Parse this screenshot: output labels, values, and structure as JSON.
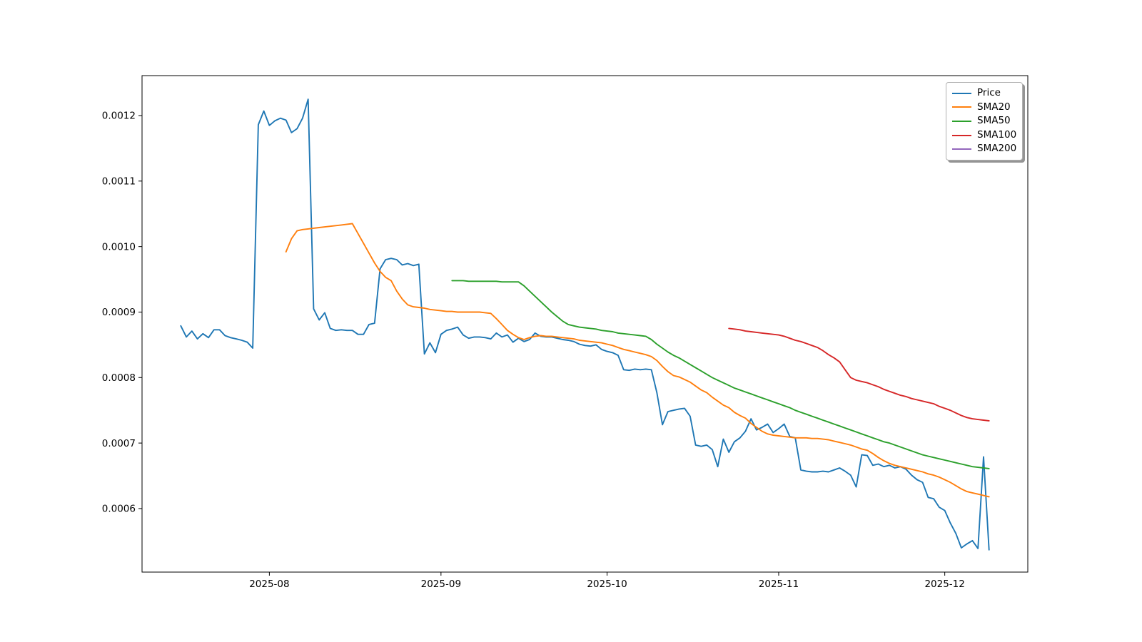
{
  "chart_data": {
    "type": "line",
    "title": "",
    "xlabel": "",
    "ylabel": "",
    "grid": false,
    "xlim": [
      "2025-07-09",
      "2025-12-16"
    ],
    "ylim": [
      0.000503,
      0.001261
    ],
    "x_ticks": [
      {
        "date": "2025-08-01",
        "label": "2025-08"
      },
      {
        "date": "2025-09-01",
        "label": "2025-09"
      },
      {
        "date": "2025-10-01",
        "label": "2025-10"
      },
      {
        "date": "2025-11-01",
        "label": "2025-11"
      },
      {
        "date": "2025-12-01",
        "label": "2025-12"
      }
    ],
    "y_ticks": [
      {
        "value": 0.0006,
        "label": "0.0006"
      },
      {
        "value": 0.0007,
        "label": "0.0007"
      },
      {
        "value": 0.0008,
        "label": "0.0008"
      },
      {
        "value": 0.0009,
        "label": "0.0009"
      },
      {
        "value": 0.001,
        "label": "0.0010"
      },
      {
        "value": 0.0011,
        "label": "0.0011"
      },
      {
        "value": 0.0012,
        "label": "0.0012"
      }
    ],
    "legend": {
      "location": "upper right",
      "entries": [
        {
          "label": "Price",
          "color": "#1f77b4"
        },
        {
          "label": "SMA20",
          "color": "#ff7f0e"
        },
        {
          "label": "SMA50",
          "color": "#2ca02c"
        },
        {
          "label": "SMA100",
          "color": "#d62728"
        },
        {
          "label": "SMA200",
          "color": "#9467bd"
        }
      ]
    },
    "series": [
      {
        "name": "Price",
        "color": "#1f77b4",
        "start_date": "2025-07-16",
        "values": [
          0.000879,
          0.000862,
          0.000871,
          0.000859,
          0.000867,
          0.000861,
          0.000873,
          0.000873,
          0.000864,
          0.000861,
          0.000859,
          0.000857,
          0.000854,
          0.000845,
          0.001186,
          0.001207,
          0.001185,
          0.001192,
          0.001196,
          0.001193,
          0.001174,
          0.00118,
          0.001196,
          0.001225,
          0.000905,
          0.000888,
          0.000899,
          0.000875,
          0.000872,
          0.000873,
          0.000872,
          0.000872,
          0.000866,
          0.000866,
          0.000881,
          0.000883,
          0.000966,
          0.00098,
          0.000982,
          0.00098,
          0.000972,
          0.000974,
          0.000971,
          0.000973,
          0.000836,
          0.000853,
          0.000838,
          0.000866,
          0.000872,
          0.000874,
          0.000877,
          0.000865,
          0.00086,
          0.000862,
          0.000862,
          0.000861,
          0.000859,
          0.000868,
          0.000862,
          0.000865,
          0.000854,
          0.00086,
          0.000855,
          0.000858,
          0.000868,
          0.000863,
          0.000862,
          0.000862,
          0.00086,
          0.000858,
          0.000857,
          0.000855,
          0.000851,
          0.000849,
          0.000848,
          0.00085,
          0.000843,
          0.00084,
          0.000838,
          0.000834,
          0.000812,
          0.000811,
          0.000813,
          0.000812,
          0.000813,
          0.000812,
          0.000777,
          0.000728,
          0.000748,
          0.00075,
          0.000752,
          0.000753,
          0.000741,
          0.000697,
          0.000695,
          0.000697,
          0.00069,
          0.000664,
          0.000706,
          0.000686,
          0.000702,
          0.000708,
          0.000718,
          0.000737,
          0.00072,
          0.000724,
          0.000729,
          0.000716,
          0.000722,
          0.000729,
          0.00071,
          0.000708,
          0.000659,
          0.000657,
          0.000656,
          0.000656,
          0.000657,
          0.000656,
          0.000659,
          0.000662,
          0.000657,
          0.000651,
          0.000633,
          0.000682,
          0.000681,
          0.000666,
          0.000668,
          0.000664,
          0.000666,
          0.000662,
          0.000664,
          0.00066,
          0.000651,
          0.000644,
          0.00064,
          0.000617,
          0.000615,
          0.000602,
          0.000597,
          0.000578,
          0.000562,
          0.00054,
          0.000546,
          0.000551,
          0.000539,
          0.000679,
          0.000537
        ]
      },
      {
        "name": "SMA20",
        "color": "#ff7f0e",
        "start_date": "2025-08-04",
        "values": [
          0.000992,
          0.001012,
          0.001024,
          0.001026,
          0.001027,
          0.001028,
          0.001029,
          0.00103,
          0.001031,
          0.001032,
          0.001033,
          0.001034,
          0.001035,
          0.00102,
          0.001005,
          0.00099,
          0.000975,
          0.000962,
          0.000953,
          0.000948,
          0.000932,
          0.00092,
          0.000911,
          0.000908,
          0.000907,
          0.000906,
          0.000904,
          0.000903,
          0.000902,
          0.000901,
          0.000901,
          0.0009,
          0.0009,
          0.0009,
          0.0009,
          0.0009,
          0.000899,
          0.000898,
          0.00089,
          0.000881,
          0.000872,
          0.000866,
          0.000861,
          0.000858,
          0.000861,
          0.000863,
          0.000864,
          0.000863,
          0.000863,
          0.000862,
          0.000861,
          0.00086,
          0.000859,
          0.000857,
          0.000856,
          0.000855,
          0.000854,
          0.000853,
          0.000851,
          0.000849,
          0.000846,
          0.000843,
          0.000841,
          0.000839,
          0.000837,
          0.000835,
          0.000832,
          0.000826,
          0.000817,
          0.000809,
          0.000803,
          0.000801,
          0.000797,
          0.000793,
          0.000787,
          0.000781,
          0.000777,
          0.00077,
          0.000764,
          0.000758,
          0.000754,
          0.000747,
          0.000742,
          0.000738,
          0.00073,
          0.000724,
          0.000718,
          0.000714,
          0.000712,
          0.000711,
          0.00071,
          0.000709,
          0.000708,
          0.000708,
          0.000708,
          0.000707,
          0.000707,
          0.000706,
          0.000705,
          0.000703,
          0.000701,
          0.000699,
          0.000697,
          0.000694,
          0.000691,
          0.000689,
          0.000684,
          0.000678,
          0.000673,
          0.000669,
          0.000666,
          0.000664,
          0.000662,
          0.00066,
          0.000658,
          0.000656,
          0.000653,
          0.000651,
          0.000648,
          0.000644,
          0.00064,
          0.000635,
          0.00063,
          0.000626,
          0.000624,
          0.000622,
          0.00062,
          0.000618
        ]
      },
      {
        "name": "SMA50",
        "color": "#2ca02c",
        "start_date": "2025-09-03",
        "values": [
          0.000948,
          0.000948,
          0.000948,
          0.000947,
          0.000947,
          0.000947,
          0.000947,
          0.000947,
          0.000947,
          0.000946,
          0.000946,
          0.000946,
          0.000946,
          0.00094,
          0.000932,
          0.000924,
          0.000916,
          0.000908,
          0.0009,
          0.000893,
          0.000886,
          0.000881,
          0.000879,
          0.000877,
          0.000876,
          0.000875,
          0.000874,
          0.000872,
          0.000871,
          0.00087,
          0.000868,
          0.000867,
          0.000866,
          0.000865,
          0.000864,
          0.000863,
          0.000858,
          0.000851,
          0.000845,
          0.000839,
          0.000834,
          0.00083,
          0.000825,
          0.00082,
          0.000815,
          0.00081,
          0.000805,
          0.0008,
          0.000796,
          0.000792,
          0.000788,
          0.000784,
          0.000781,
          0.000778,
          0.000775,
          0.000772,
          0.000769,
          0.000766,
          0.000763,
          0.00076,
          0.000757,
          0.000754,
          0.00075,
          0.000747,
          0.000744,
          0.000741,
          0.000738,
          0.000735,
          0.000732,
          0.000729,
          0.000726,
          0.000723,
          0.00072,
          0.000717,
          0.000714,
          0.000711,
          0.000708,
          0.000705,
          0.000702,
          0.0007,
          0.000697,
          0.000694,
          0.000691,
          0.000688,
          0.000685,
          0.000682,
          0.00068,
          0.000678,
          0.000676,
          0.000674,
          0.000672,
          0.00067,
          0.000668,
          0.000666,
          0.000664,
          0.000663,
          0.000662,
          0.000661
        ]
      },
      {
        "name": "SMA100",
        "color": "#d62728",
        "start_date": "2025-10-23",
        "values": [
          0.000875,
          0.000874,
          0.000873,
          0.000871,
          0.00087,
          0.000869,
          0.000868,
          0.000867,
          0.000866,
          0.000865,
          0.000863,
          0.00086,
          0.000857,
          0.000855,
          0.000852,
          0.000849,
          0.000846,
          0.000841,
          0.000835,
          0.00083,
          0.000824,
          0.000812,
          0.0008,
          0.000796,
          0.000794,
          0.000792,
          0.000789,
          0.000786,
          0.000782,
          0.000779,
          0.000776,
          0.000773,
          0.000771,
          0.000768,
          0.000766,
          0.000764,
          0.000762,
          0.00076,
          0.000756,
          0.000753,
          0.00075,
          0.000746,
          0.000742,
          0.000739,
          0.000737,
          0.000736,
          0.000735,
          0.000734
        ]
      },
      {
        "name": "SMA200",
        "color": "#9467bd",
        "start_date": "2025-12-16",
        "values": []
      }
    ]
  }
}
